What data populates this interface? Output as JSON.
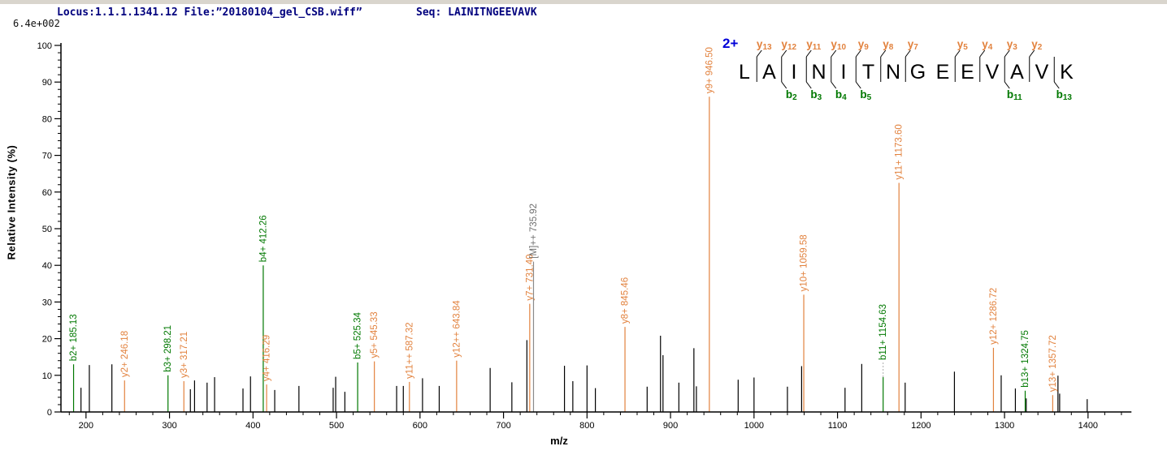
{
  "header": {
    "locus_file": "Locus:1.1.1.1341.12 File:”20180104_gel_CSB.wiff”",
    "seq_label": "Seq: LAINITNGEEVAVK",
    "scale_note": "6.4e+002"
  },
  "peptide_map": {
    "charge_label": "2+",
    "sequence": "LAINITNGEEVAVK",
    "y_ions": [
      {
        "name": "y",
        "num": 13,
        "gap": 0
      },
      {
        "name": "y",
        "num": 12,
        "gap": 1
      },
      {
        "name": "y",
        "num": 11,
        "gap": 2
      },
      {
        "name": "y",
        "num": 10,
        "gap": 3
      },
      {
        "name": "y",
        "num": 9,
        "gap": 4
      },
      {
        "name": "y",
        "num": 8,
        "gap": 5
      },
      {
        "name": "y",
        "num": 7,
        "gap": 6
      },
      {
        "name": "y",
        "num": 5,
        "gap": 8
      },
      {
        "name": "y",
        "num": 4,
        "gap": 9
      },
      {
        "name": "y",
        "num": 3,
        "gap": 10
      },
      {
        "name": "y",
        "num": 2,
        "gap": 11
      }
    ],
    "b_ions": [
      {
        "name": "b",
        "num": 2,
        "gap": 1
      },
      {
        "name": "b",
        "num": 3,
        "gap": 2
      },
      {
        "name": "b",
        "num": 4,
        "gap": 3
      },
      {
        "name": "b",
        "num": 5,
        "gap": 4
      },
      {
        "name": "b",
        "num": 11,
        "gap": 10
      },
      {
        "name": "b",
        "num": 13,
        "gap": 12
      }
    ]
  },
  "colors": {
    "y_ion": "#e2823e",
    "b_ion": "#007800",
    "precursor_line": "#8a8a8a",
    "precursor_text": "#6e6e6e",
    "peak": "#000000",
    "header_text": "#00007e",
    "charge_text": "#0000d8",
    "axis": "#000000"
  },
  "chart_data": {
    "type": "bar",
    "subtype": "ms2-fragment-spectrum",
    "title": "",
    "xlabel": "m/z",
    "ylabel": "Relative  Intensity (%)",
    "xlim": [
      170,
      1452
    ],
    "ylim": [
      0,
      100
    ],
    "x_major_ticks": [
      200,
      300,
      400,
      500,
      600,
      700,
      800,
      900,
      1000,
      1100,
      1200,
      1300,
      1400
    ],
    "x_minor_step": 20,
    "y_major_step": 10,
    "y_minor_step": 2,
    "grid": false,
    "base_peak_intensity": "6.4e+002",
    "labeled_peaks": [
      {
        "label": "b2+ 185.13",
        "mz": 185.13,
        "pct": 13.0,
        "ion": "b"
      },
      {
        "label": "y2+ 246.18",
        "mz": 246.18,
        "pct": 8.6,
        "ion": "y"
      },
      {
        "label": "b3+ 298.21",
        "mz": 298.21,
        "pct": 10.0,
        "ion": "b"
      },
      {
        "label": "y3+ 317.21",
        "mz": 317.21,
        "pct": 8.4,
        "ion": "y"
      },
      {
        "label": "b4+ 412.26",
        "mz": 412.26,
        "pct": 40.0,
        "ion": "b"
      },
      {
        "label": "y4+ 416.29",
        "mz": 416.29,
        "pct": 7.5,
        "ion": "y"
      },
      {
        "label": "b5+ 525.34",
        "mz": 525.34,
        "pct": 13.5,
        "ion": "b"
      },
      {
        "label": "y5+ 545.33",
        "mz": 545.33,
        "pct": 13.8,
        "ion": "y"
      },
      {
        "label": "y11++ 587.32",
        "mz": 587.32,
        "pct": 8.2,
        "ion": "y"
      },
      {
        "label": "y12++ 643.84",
        "mz": 643.84,
        "pct": 14.0,
        "ion": "y"
      },
      {
        "label": "y7+ 731.40",
        "mz": 731.4,
        "pct": 29.5,
        "ion": "y"
      },
      {
        "label": "[M]++ 735.92",
        "mz": 735.92,
        "pct": 41.0,
        "ion": "M"
      },
      {
        "label": "y8+ 845.46",
        "mz": 845.46,
        "pct": 23.2,
        "ion": "y"
      },
      {
        "label": "y9+ 946.50",
        "mz": 946.5,
        "pct": 86.0,
        "ion": "y"
      },
      {
        "label": "y10+ 1059.58",
        "mz": 1059.58,
        "pct": 32.0,
        "ion": "y"
      },
      {
        "label": "b11+ 1154.63",
        "mz": 1154.63,
        "pct": 9.5,
        "ion": "b",
        "dash_to_pct": 13.5
      },
      {
        "label": "y11+ 1173.60",
        "mz": 1173.6,
        "pct": 62.5,
        "ion": "y"
      },
      {
        "label": "y12+ 1286.72",
        "mz": 1286.72,
        "pct": 17.5,
        "ion": "y"
      },
      {
        "label": "b13+ 1324.75",
        "mz": 1324.75,
        "pct": 5.8,
        "ion": "b"
      },
      {
        "label": "y13+ 1357.72",
        "mz": 1357.72,
        "pct": 4.6,
        "ion": "y"
      }
    ],
    "unlabeled_peaks": [
      [
        194,
        6.6
      ],
      [
        204,
        12.8
      ],
      [
        231,
        13.0
      ],
      [
        325,
        6.2
      ],
      [
        330,
        8.6
      ],
      [
        345,
        8.0
      ],
      [
        354,
        9.5
      ],
      [
        388,
        6.4
      ],
      [
        397,
        9.7
      ],
      [
        426,
        6.0
      ],
      [
        455,
        7.1
      ],
      [
        496,
        6.6
      ],
      [
        499,
        9.6
      ],
      [
        510,
        5.5
      ],
      [
        572,
        7.1
      ],
      [
        580,
        7.1
      ],
      [
        603,
        9.2
      ],
      [
        623,
        7.1
      ],
      [
        684,
        12.0
      ],
      [
        710,
        8.1
      ],
      [
        728,
        19.6
      ],
      [
        773,
        12.6
      ],
      [
        783,
        8.4
      ],
      [
        800,
        12.7
      ],
      [
        810,
        6.5
      ],
      [
        872,
        6.9
      ],
      [
        888,
        20.8
      ],
      [
        891,
        15.5
      ],
      [
        910,
        8.0
      ],
      [
        928,
        17.4
      ],
      [
        931,
        7.0
      ],
      [
        981,
        8.8
      ],
      [
        1000,
        9.4
      ],
      [
        1040,
        6.9
      ],
      [
        1057,
        12.5
      ],
      [
        1109,
        6.6
      ],
      [
        1129,
        13.1
      ],
      [
        1181,
        8.0
      ],
      [
        1240,
        11.0
      ],
      [
        1296,
        10.0
      ],
      [
        1313,
        6.4
      ],
      [
        1326,
        3.7
      ],
      [
        1364,
        9.9
      ],
      [
        1366,
        5.0
      ],
      [
        1399,
        3.5
      ]
    ]
  }
}
